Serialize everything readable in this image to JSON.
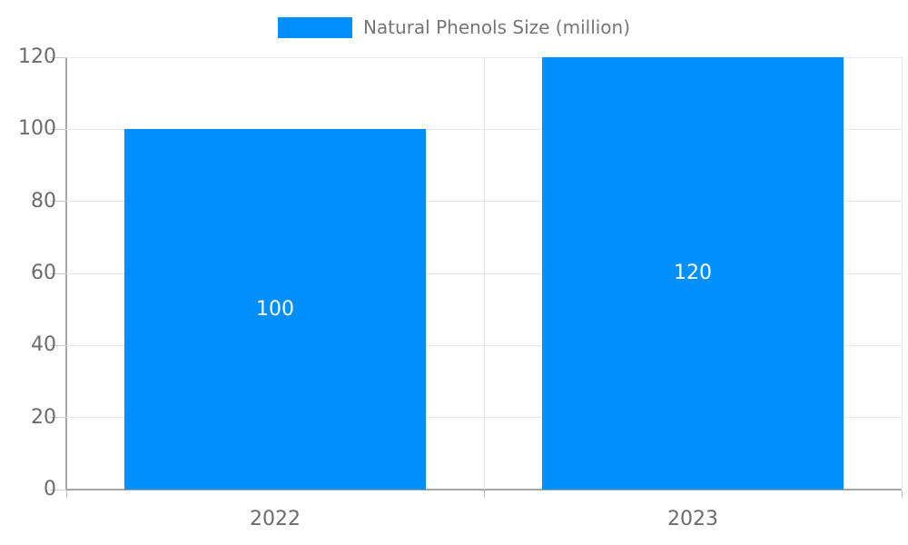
{
  "legend": {
    "items": [
      {
        "label": "Natural Phenols Size (million)",
        "swatch_color": "#008FFB"
      }
    ]
  },
  "chart_data": {
    "type": "bar",
    "title": "",
    "xlabel": "",
    "ylabel": "",
    "categories": [
      "2022",
      "2023"
    ],
    "series": [
      {
        "name": "Natural Phenols Size (million)",
        "values": [
          100,
          120
        ]
      }
    ],
    "data_labels": [
      "100",
      "120"
    ],
    "ylim": [
      0,
      120
    ],
    "yticks": [
      0,
      20,
      40,
      60,
      80,
      100,
      120
    ],
    "grid": true,
    "legend_position": "top-center",
    "colors": {
      "bar": "#008FFB",
      "gridline": "#e7e7e7",
      "axis_line": "#a6a6a6",
      "tick": "#c9c9c9",
      "axis_label_text": "#6b6b6b",
      "legend_text": "#757575",
      "data_label_text": "#ffffff",
      "background": "#ffffff"
    }
  }
}
